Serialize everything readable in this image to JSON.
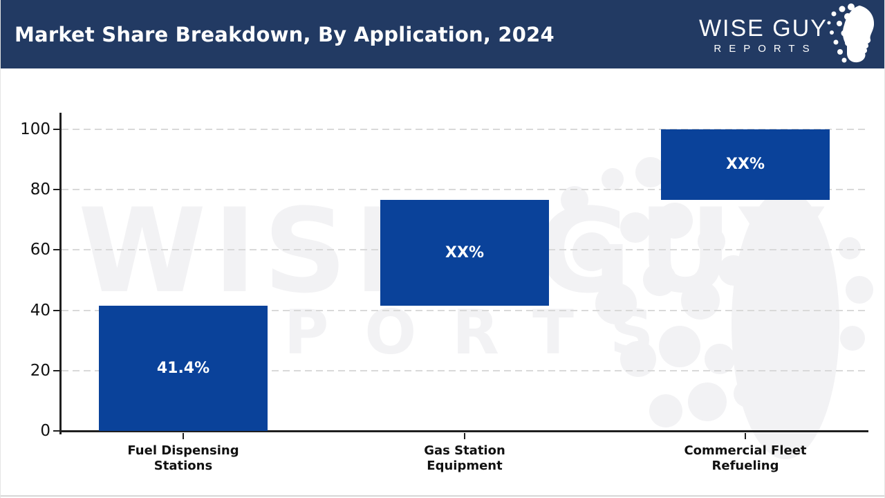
{
  "header": {
    "title": "Market Share Breakdown, By Application, 2024"
  },
  "logo": {
    "line1": "WISE GUY",
    "line2": "REPORTS",
    "face_icon": "dotted-face-profile"
  },
  "watermark": {
    "line1": "WISE GUY",
    "line2": "REPORTS"
  },
  "chart_data": {
    "type": "bar",
    "subtype": "waterfall",
    "title": "Market Share Breakdown, By Application, 2024",
    "categories": [
      "Fuel Dispensing Stations",
      "Gas Station Equipment",
      "Commercial Fleet Refueling"
    ],
    "category_label_lines": [
      [
        "Fuel Dispensing",
        "Stations"
      ],
      [
        "Gas Station",
        "Equipment"
      ],
      [
        "Commercial Fleet",
        "Refueling"
      ]
    ],
    "segments": [
      {
        "category": "Fuel Dispensing Stations",
        "start": 0,
        "end": 41.4,
        "label": "41.4%"
      },
      {
        "category": "Gas Station Equipment",
        "start": 41.4,
        "end": 76.6,
        "label": "XX%"
      },
      {
        "category": "Commercial Fleet Refueling",
        "start": 76.6,
        "end": 100,
        "label": "XX%"
      }
    ],
    "yticks": [
      0,
      20,
      40,
      60,
      80,
      100
    ],
    "ylim": [
      0,
      105
    ],
    "xlabel": "",
    "ylabel": "",
    "grid": "horizontal-dashed",
    "legend": "none"
  },
  "colors": {
    "header_bg": "#223a63",
    "bar_blue": "#0a429a",
    "grid_gray": "#d9d9d9",
    "axis_dark": "#1f1f1f",
    "watermark_gray": "#f2f2f4",
    "label_black": "#111111",
    "value_label_white": "#ffffff",
    "footer_rule_gray": "#d6d6d6"
  }
}
